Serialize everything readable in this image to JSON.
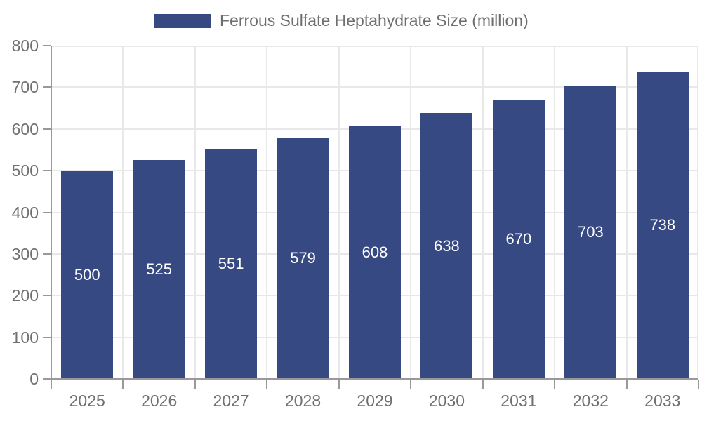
{
  "legend": {
    "label": "Ferrous Sulfate Heptahydrate Size (million)"
  },
  "chart_data": {
    "type": "bar",
    "title": "",
    "series_name": "Ferrous Sulfate Heptahydrate Size (million)",
    "categories": [
      "2025",
      "2026",
      "2027",
      "2028",
      "2029",
      "2030",
      "2031",
      "2032",
      "2033"
    ],
    "values": [
      500,
      525,
      551,
      579,
      608,
      638,
      670,
      703,
      738
    ],
    "xlabel": "",
    "ylabel": "",
    "ylim": [
      0,
      800
    ],
    "ytick_interval": 100,
    "yticks": [
      0,
      100,
      200,
      300,
      400,
      500,
      600,
      700,
      800
    ],
    "grid": true,
    "legend_position": "top-center",
    "value_labels": "inside-center"
  },
  "colors": {
    "bar": "#374982",
    "axis": "#999999",
    "grid": "#e8e8e8",
    "tick_text": "#707070",
    "legend_text": "#6e6e6e",
    "bar_label": "#ffffff",
    "background": "#ffffff"
  }
}
